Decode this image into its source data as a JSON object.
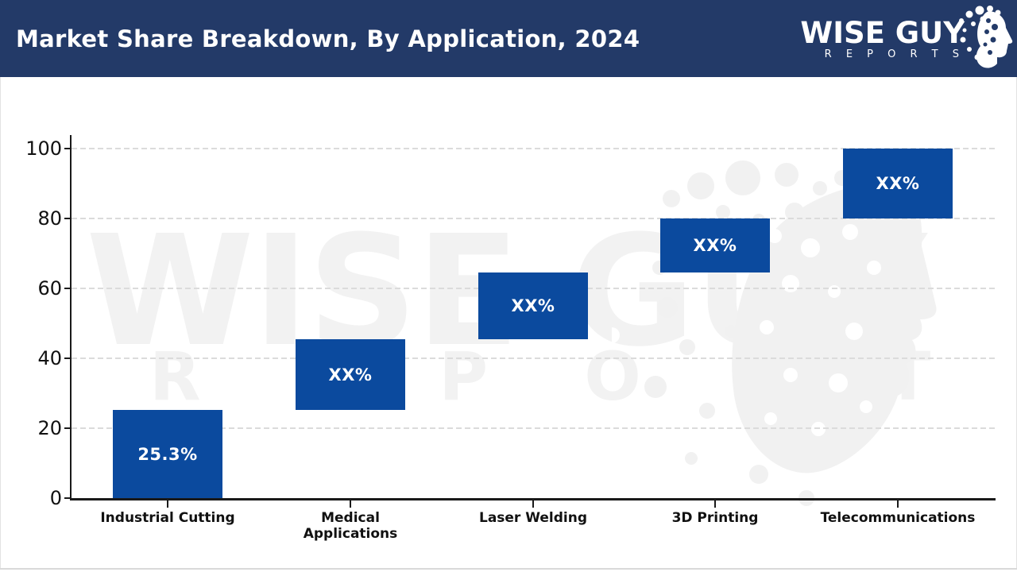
{
  "header": {
    "title": "Market Share Breakdown, By Application, 2024",
    "bg_color": "#233A68",
    "text_color": "#FFFFFF",
    "logo": {
      "line1": "WISE GUY",
      "line2": "R E P O R T S"
    }
  },
  "watermark": {
    "line1": "WISE GUY",
    "line2": "R E P O R T S",
    "color": "#F2F2F2"
  },
  "chart_data": {
    "type": "bar",
    "subtype": "waterfall",
    "title": "Market Share Breakdown, By Application, 2024",
    "categories": [
      "Industrial Cutting",
      "Medical Applications",
      "Laser Welding",
      "3D Printing",
      "Telecommunications"
    ],
    "tick_labels": [
      "Industrial Cutting",
      "Medical\nApplications",
      "Laser Welding",
      "3D Printing",
      "Telecommunications"
    ],
    "segments": [
      {
        "category": "Industrial Cutting",
        "start": 0,
        "end": 25.3,
        "value": 25.3,
        "label": "25.3%"
      },
      {
        "category": "Medical Applications",
        "start": 25.3,
        "end": 45.5,
        "value": 20.2,
        "label": "XX%"
      },
      {
        "category": "Laser Welding",
        "start": 45.5,
        "end": 64.5,
        "value": 19.0,
        "label": "XX%"
      },
      {
        "category": "3D Printing",
        "start": 64.5,
        "end": 80.0,
        "value": 15.5,
        "label": "XX%"
      },
      {
        "category": "Telecommunications",
        "start": 80.0,
        "end": 100.0,
        "value": 20.0,
        "label": "XX%"
      }
    ],
    "ylim": [
      0,
      100
    ],
    "yticks": [
      0,
      20,
      40,
      60,
      80,
      100
    ],
    "xlabel": "",
    "ylabel": "",
    "legend": "none",
    "grid": "horizontal-dashed",
    "bar_color": "#0B4A9E",
    "bar_label_color": "#FFFFFF",
    "axis_color": "#1A1A1A",
    "grid_color": "#DBDBDB",
    "tick_label_color": "#111111"
  }
}
